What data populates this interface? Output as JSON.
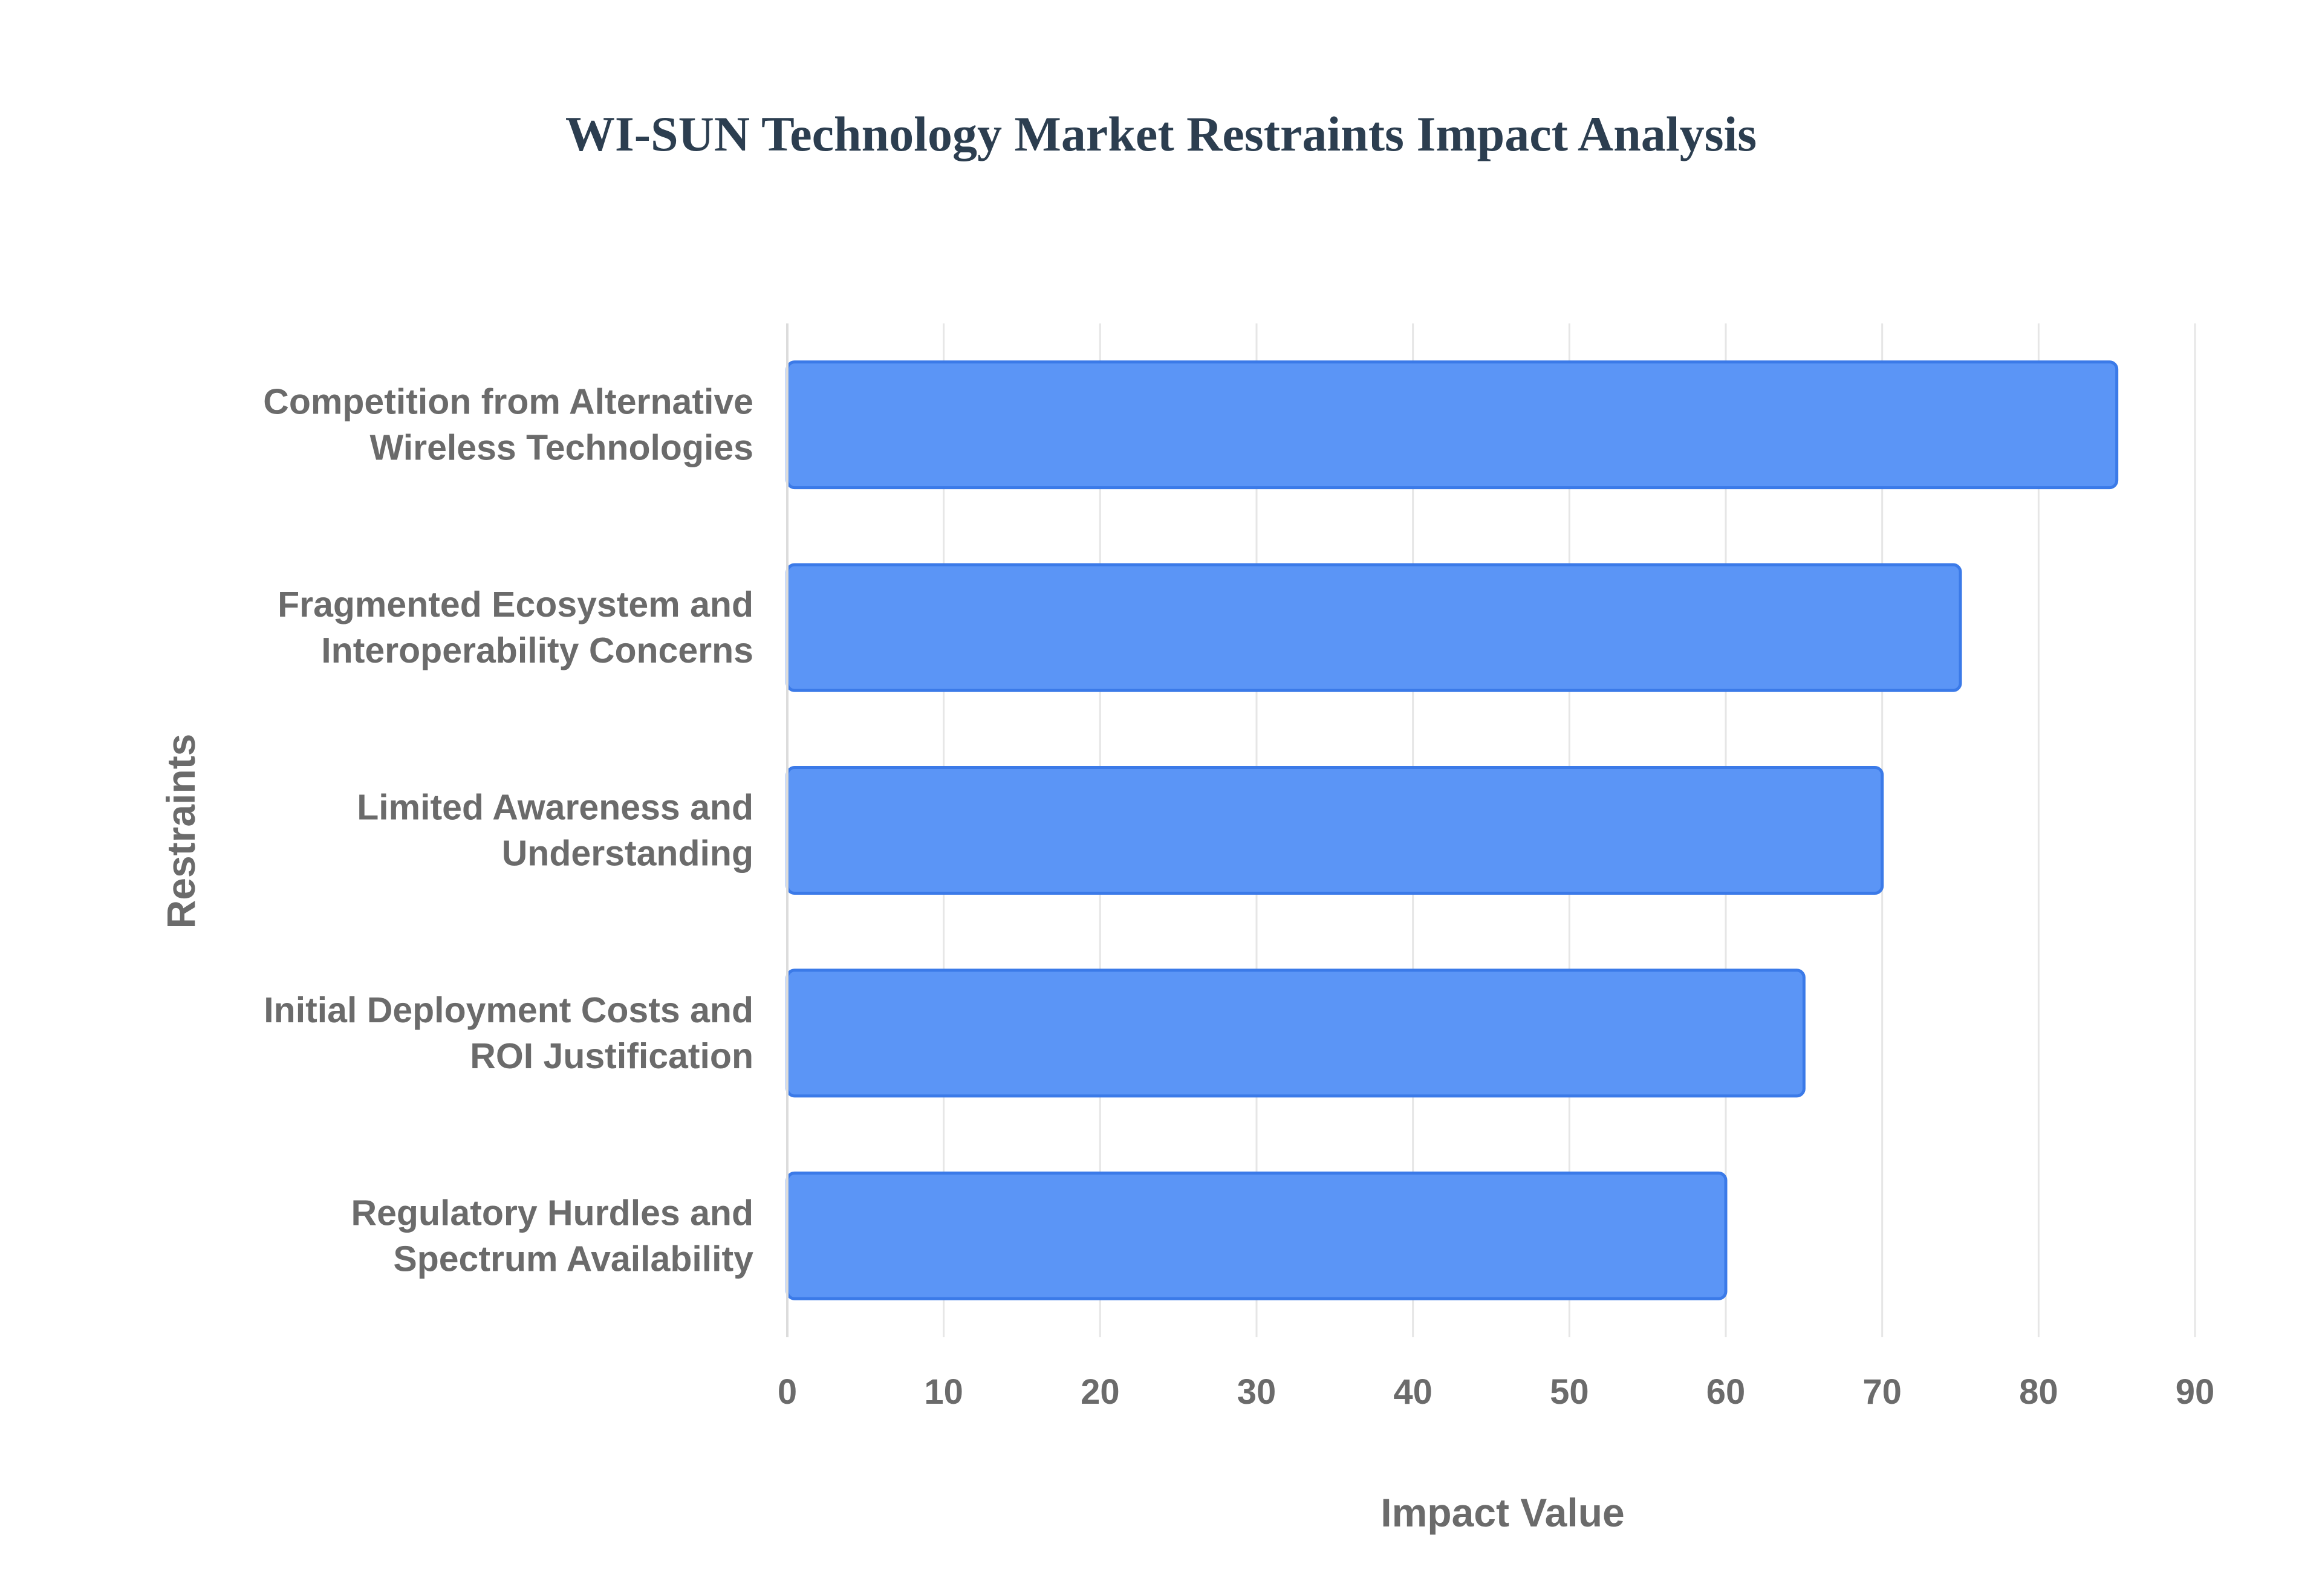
{
  "chart_data": {
    "type": "bar",
    "orientation": "horizontal",
    "title": "WI-SUN Technology Market Restraints Impact Analysis",
    "xlabel": "Impact Value",
    "ylabel": "Restraints",
    "categories": [
      [
        "Competition from Alternative",
        "Wireless Technologies"
      ],
      [
        "Fragmented Ecosystem and",
        "Interoperability Concerns"
      ],
      [
        "Limited Awareness and",
        "Understanding"
      ],
      [
        "Initial Deployment Costs and",
        "ROI Justification"
      ],
      [
        "Regulatory Hurdles and",
        "Spectrum Availability"
      ]
    ],
    "values": [
      85,
      75,
      70,
      65,
      60
    ],
    "xlim": [
      0,
      90
    ],
    "xticks": [
      "0",
      "10",
      "20",
      "30",
      "40",
      "50",
      "60",
      "70",
      "80",
      "90"
    ],
    "grid": true,
    "legend": "none",
    "colors": {
      "bar_fill": "#5b95f6",
      "bar_stroke": "#3b7ae8",
      "title": "#2c3e50",
      "text": "#6b6b6b",
      "grid": "#e6e6e6"
    }
  }
}
